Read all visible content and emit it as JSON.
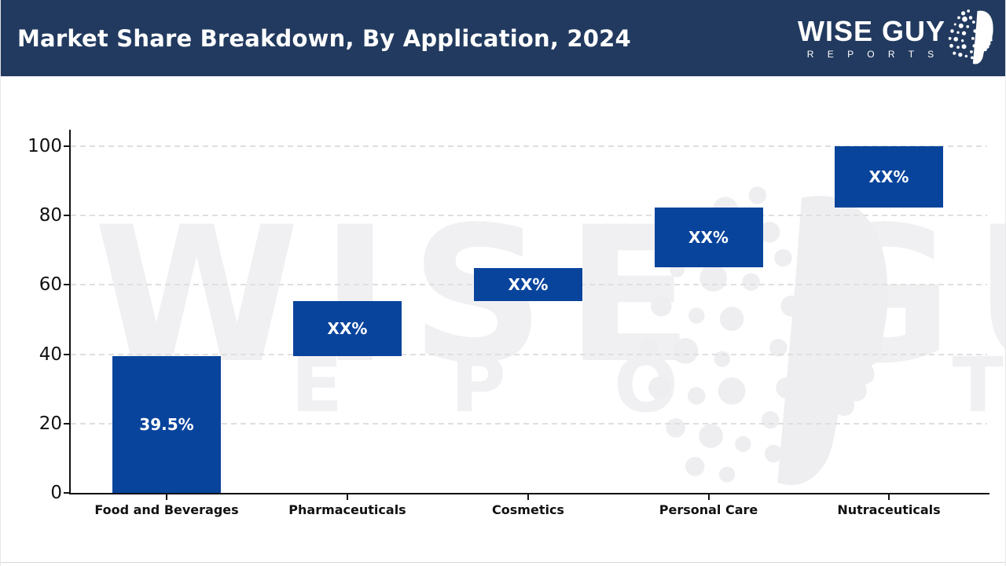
{
  "header": {
    "title": "Market Share Breakdown, By Application, 2024",
    "logo": {
      "name": "WISE GUY",
      "sub": "R E P O R T S"
    }
  },
  "icons": {
    "logo_head": "head-profile-dots-icon",
    "watermark_head": "head-profile-dots-watermark"
  },
  "watermark": {
    "line1": "WISE GUY",
    "line2": "R E P O R T S"
  },
  "colors": {
    "header_bg": "#223a5f",
    "bar": "#09449c",
    "bar_label": "#ffffff",
    "grid": "#dfdfdf",
    "axis": "#111111",
    "watermark": "#f0f0f3",
    "title_text": "#ffffff"
  },
  "chart_data": {
    "type": "waterfall_bar",
    "title": "Market Share Breakdown, By Application, 2024",
    "categories": [
      "Food and Beverages",
      "Pharmaceuticals",
      "Cosmetics",
      "Personal Care",
      "Nutraceuticals"
    ],
    "segments": [
      {
        "category": "Food and Beverages",
        "start": 0,
        "end": 39.5,
        "label": "39.5%"
      },
      {
        "category": "Pharmaceuticals",
        "start": 39.5,
        "end": 55.4,
        "label": "XX%"
      },
      {
        "category": "Cosmetics",
        "start": 55.4,
        "end": 64.9,
        "label": "XX%"
      },
      {
        "category": "Personal Care",
        "start": 65,
        "end": 82.3,
        "label": "XX%"
      },
      {
        "category": "Nutraceuticals",
        "start": 82.3,
        "end": 100,
        "label": "XX%"
      }
    ],
    "yticks": [
      0,
      20,
      40,
      60,
      80,
      100
    ],
    "ylim": [
      0,
      104
    ],
    "xlabel": "",
    "ylabel": "",
    "grid": "horizontal-dashed",
    "legend": "none",
    "bar_color": "#09449c",
    "value_label_color": "#ffffff"
  }
}
